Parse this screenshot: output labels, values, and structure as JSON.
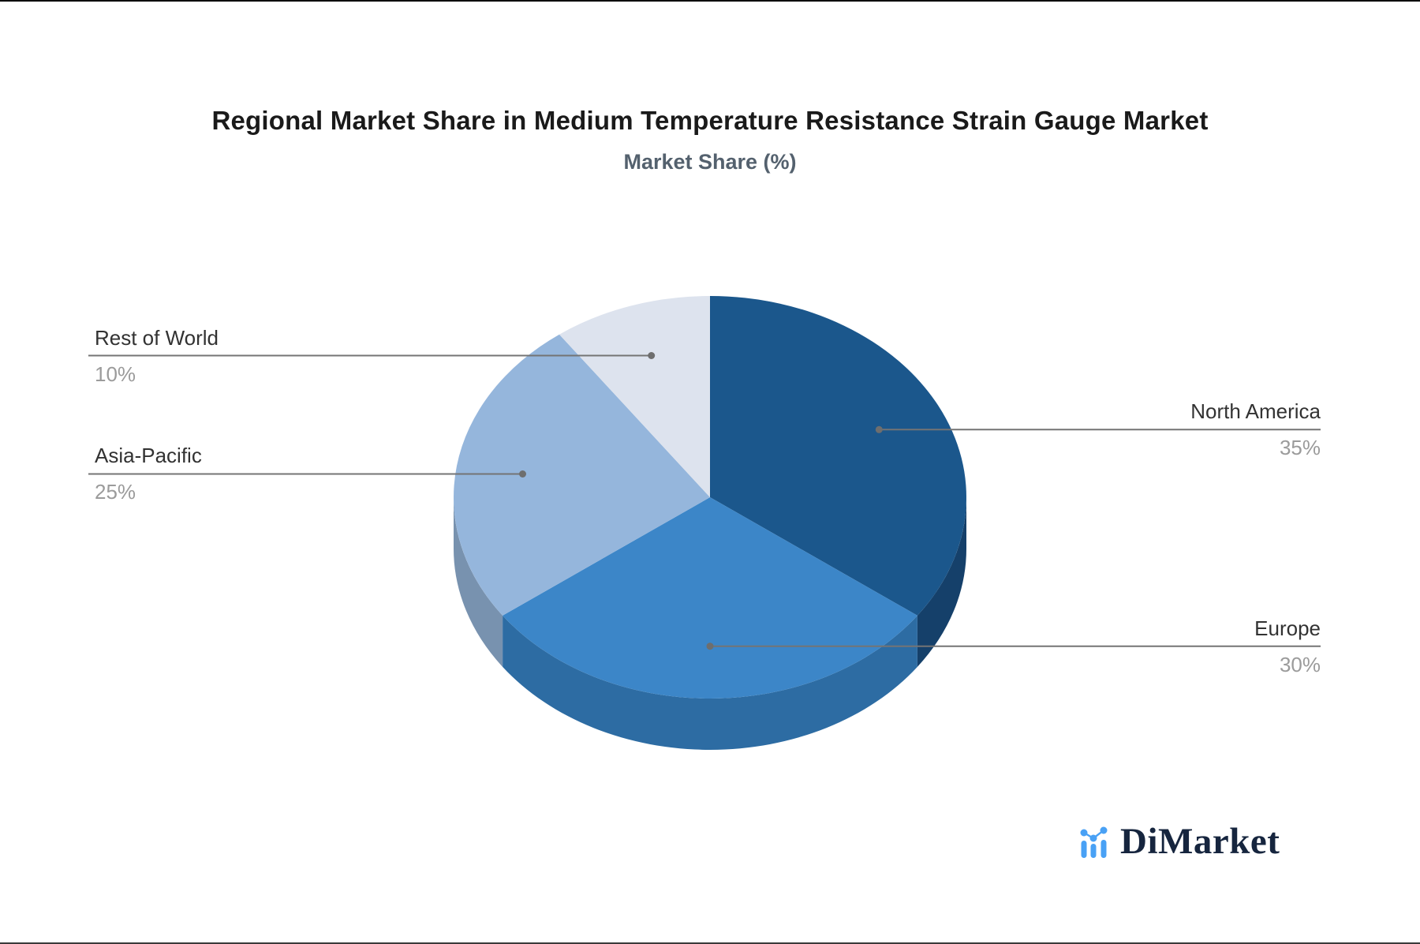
{
  "chart_data": {
    "type": "pie",
    "style": "3d",
    "title": "Regional Market Share in Medium Temperature Resistance Strain Gauge Market",
    "subtitle": "Market Share (%)",
    "direction": "clockwise",
    "start_angle_deg": 0,
    "legend": "none",
    "label_format": "region name above leader line, percent below in gray",
    "slices": [
      {
        "label": "North America",
        "value": 35,
        "pct_label": "35%",
        "color": "#1B578C",
        "side_color": "#15406A",
        "label_side": "right"
      },
      {
        "label": "Europe",
        "value": 30,
        "pct_label": "30%",
        "color": "#3C86C8",
        "side_color": "#2D6CA3",
        "label_side": "right"
      },
      {
        "label": "Asia-Pacific",
        "value": 25,
        "pct_label": "25%",
        "color": "#95B6DC",
        "side_color": "#7892AF",
        "label_side": "left"
      },
      {
        "label": "Rest of World",
        "value": 10,
        "pct_label": "10%",
        "color": "#DDE3EE",
        "side_color": "#C5CEDC",
        "label_side": "left"
      }
    ]
  },
  "logo": {
    "text": "DiMarket",
    "icon": "bar-chart-trend-icon",
    "icon_color": "#49A1F5",
    "text_color": "#16253E"
  },
  "colors": {
    "background": "#FFFFFF",
    "title": "#1A1A1A",
    "subtitle": "#54616E",
    "slice_name": "#323232",
    "slice_pct": "#9B9B9B",
    "leader_line": "#747474",
    "leader_dot": "#6E6E6E",
    "top_edge": "#0A0A0A",
    "bottom_edge": "#3A3A3A"
  }
}
